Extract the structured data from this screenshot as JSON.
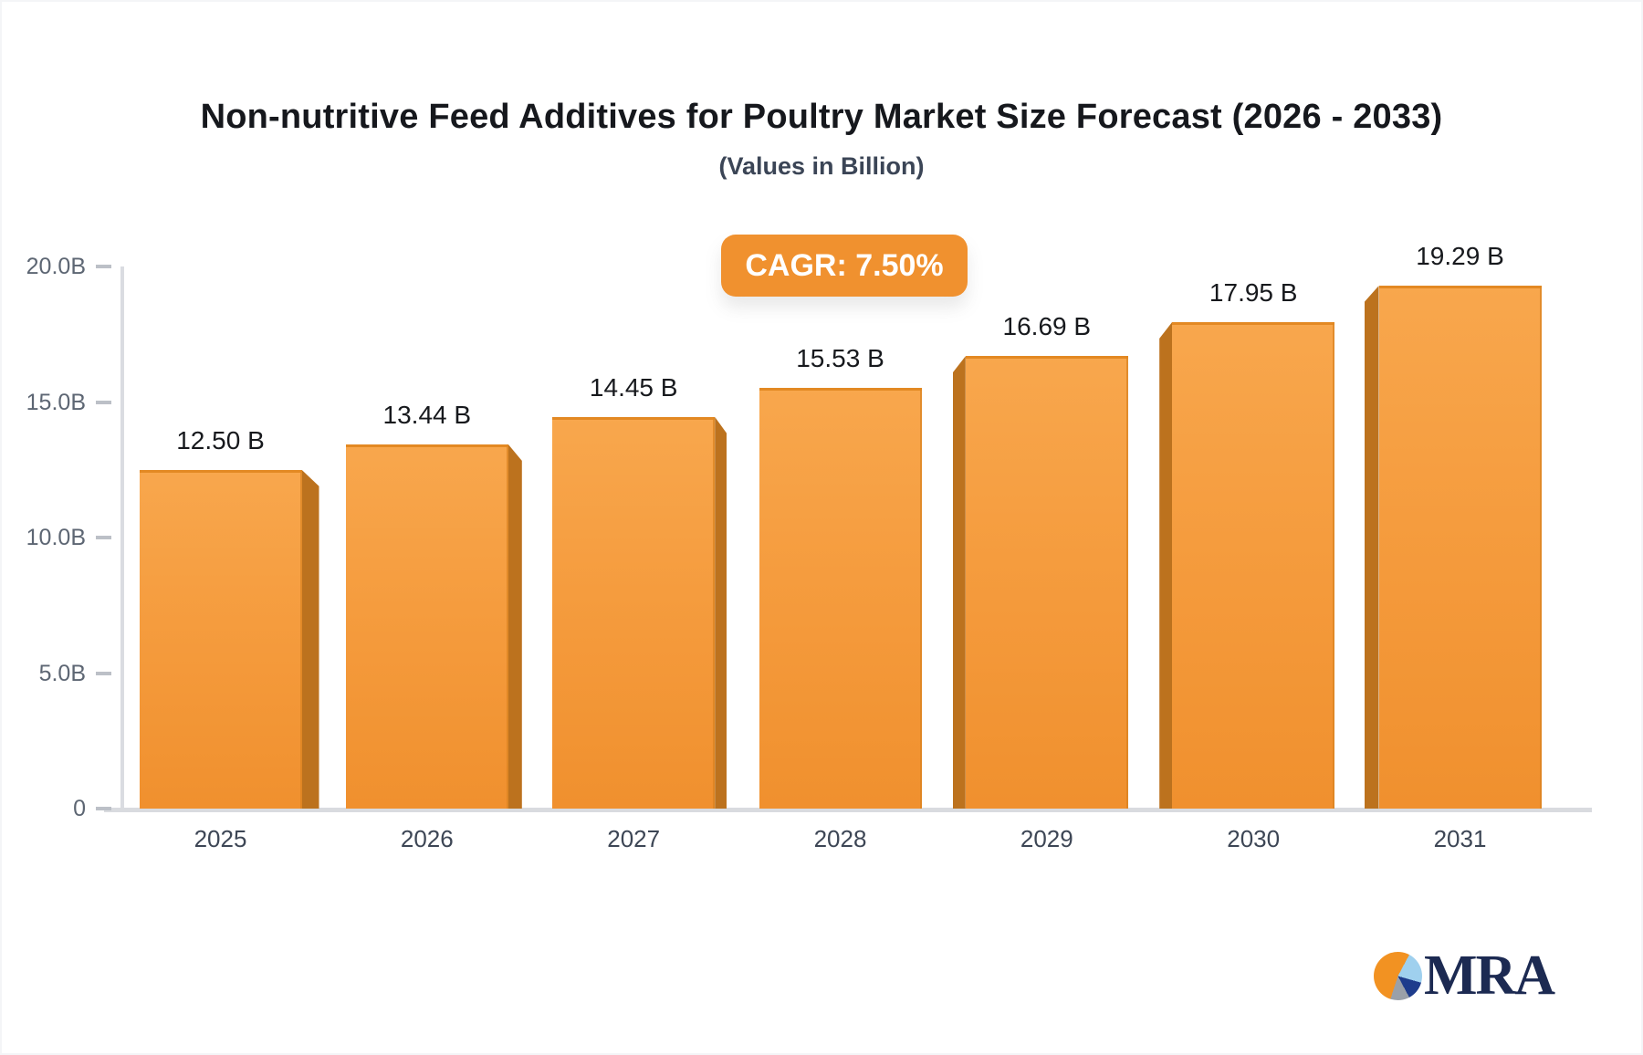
{
  "header": {
    "title": "Non-nutritive Feed Additives for Poultry Market Size Forecast (2026 - 2033)",
    "subtitle": "(Values in Billion)"
  },
  "badge": {
    "label": "CAGR: 7.50%"
  },
  "chart_data": {
    "type": "bar",
    "title": "Non-nutritive Feed Additives for Poultry Market Size Forecast (2026 - 2033)",
    "subtitle": "(Values in Billion)",
    "categories": [
      "2025",
      "2026",
      "2027",
      "2028",
      "2029",
      "2030",
      "2031"
    ],
    "values": [
      12.5,
      13.44,
      14.45,
      15.53,
      16.69,
      17.95,
      19.29
    ],
    "value_labels": [
      "12.50 B",
      "13.44 B",
      "14.45 B",
      "15.53 B",
      "16.69 B",
      "17.95 B",
      "19.29 B"
    ],
    "annotation": "CAGR: 7.50%",
    "xlabel": "",
    "ylabel": "",
    "ylim": [
      0,
      20
    ],
    "yticks": [
      0,
      5,
      10,
      15,
      20
    ],
    "ytick_labels": [
      "0",
      "5.0B",
      "10.0B",
      "15.0B",
      "20.0B"
    ],
    "grid": false,
    "legend": false,
    "colors": {
      "bar_top": "#f8a74d",
      "bar_bottom": "#f0902e",
      "bar_side": "#bc721e",
      "accent": "#f0912f",
      "axis": "#d9dbdf",
      "tick_label": "#5d6673",
      "category_label": "#3d4655",
      "value_label": "#17191d"
    }
  },
  "logo": {
    "text": "MRA"
  },
  "colors": {
    "background": "#ffffff",
    "title": "#16181d",
    "subtitle": "#3b4556",
    "badge_bg": "#f0912f",
    "badge_text": "#ffffff",
    "logo_text": "#1c2a52",
    "logo_orange": "#f29222",
    "logo_lightblue": "#9fd0ee",
    "logo_darkblue": "#1e3c8c",
    "logo_gray": "#9aa0a8"
  }
}
